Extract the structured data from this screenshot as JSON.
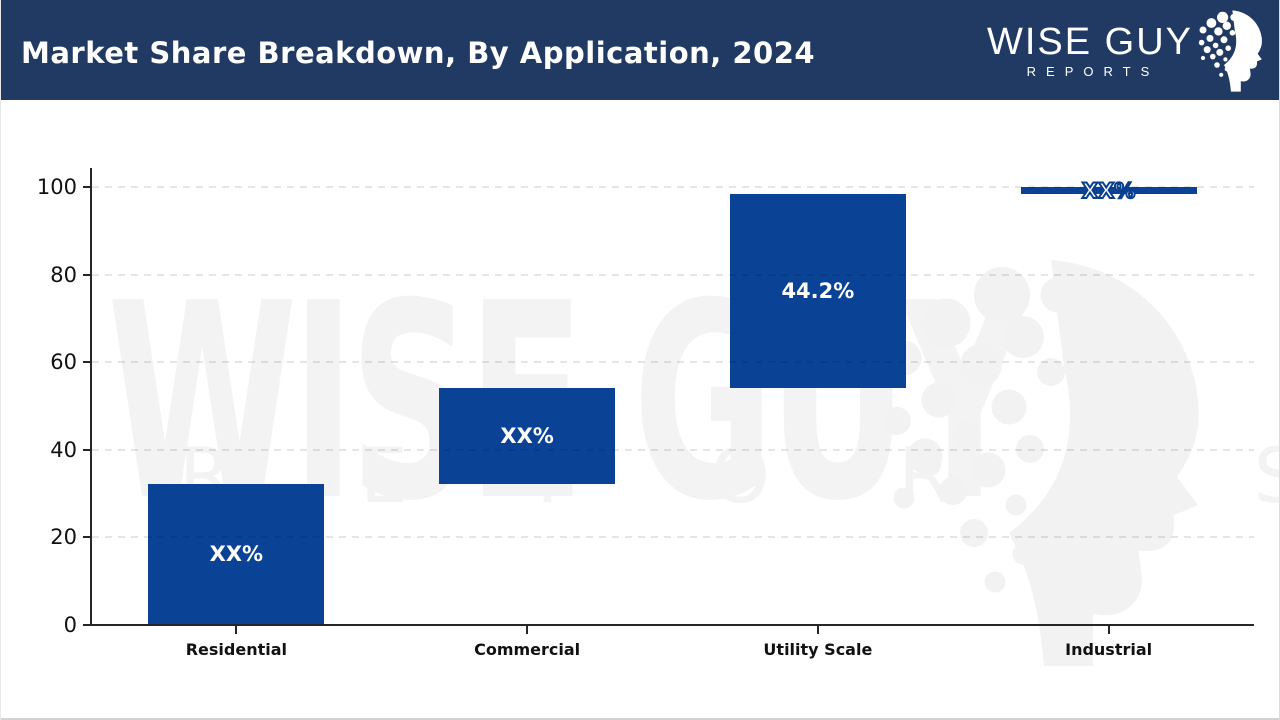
{
  "header": {
    "title": "Market Share Breakdown, By Application, 2024",
    "bg_color": "#213A64",
    "logo": {
      "line1": "WISE GUY",
      "line2": "REPORTS",
      "head_icon": "dotted-face-profile"
    }
  },
  "watermark": {
    "line1": "WISE GUY",
    "line2": "R E P O R T S",
    "head_icon": "dotted-face-profile"
  },
  "chart_data": {
    "type": "bar",
    "subtype": "waterfall",
    "title": "Market Share Breakdown, By Application, 2024",
    "categories": [
      "Residential",
      "Commercial",
      "Utility Scale",
      "Industrial"
    ],
    "segments": [
      {
        "category": "Residential",
        "start": 0,
        "end": 32.2,
        "label": "XX%"
      },
      {
        "category": "Commercial",
        "start": 32.2,
        "end": 54.1,
        "label": "XX%"
      },
      {
        "category": "Utility Scale",
        "start": 54.1,
        "end": 98.3,
        "label": "44.2%"
      },
      {
        "category": "Industrial",
        "start": 98.3,
        "end": 100,
        "label": "XX%"
      }
    ],
    "xlabel": "",
    "ylabel": "",
    "ylim": [
      0,
      100
    ],
    "yticks": [
      0,
      20,
      40,
      60,
      80,
      100
    ],
    "grid": "dashed-horizontal",
    "legend": "none",
    "bar_color": "#0A4396",
    "bar_label_color": "#FFFFFF",
    "axis_color": "#262626"
  }
}
